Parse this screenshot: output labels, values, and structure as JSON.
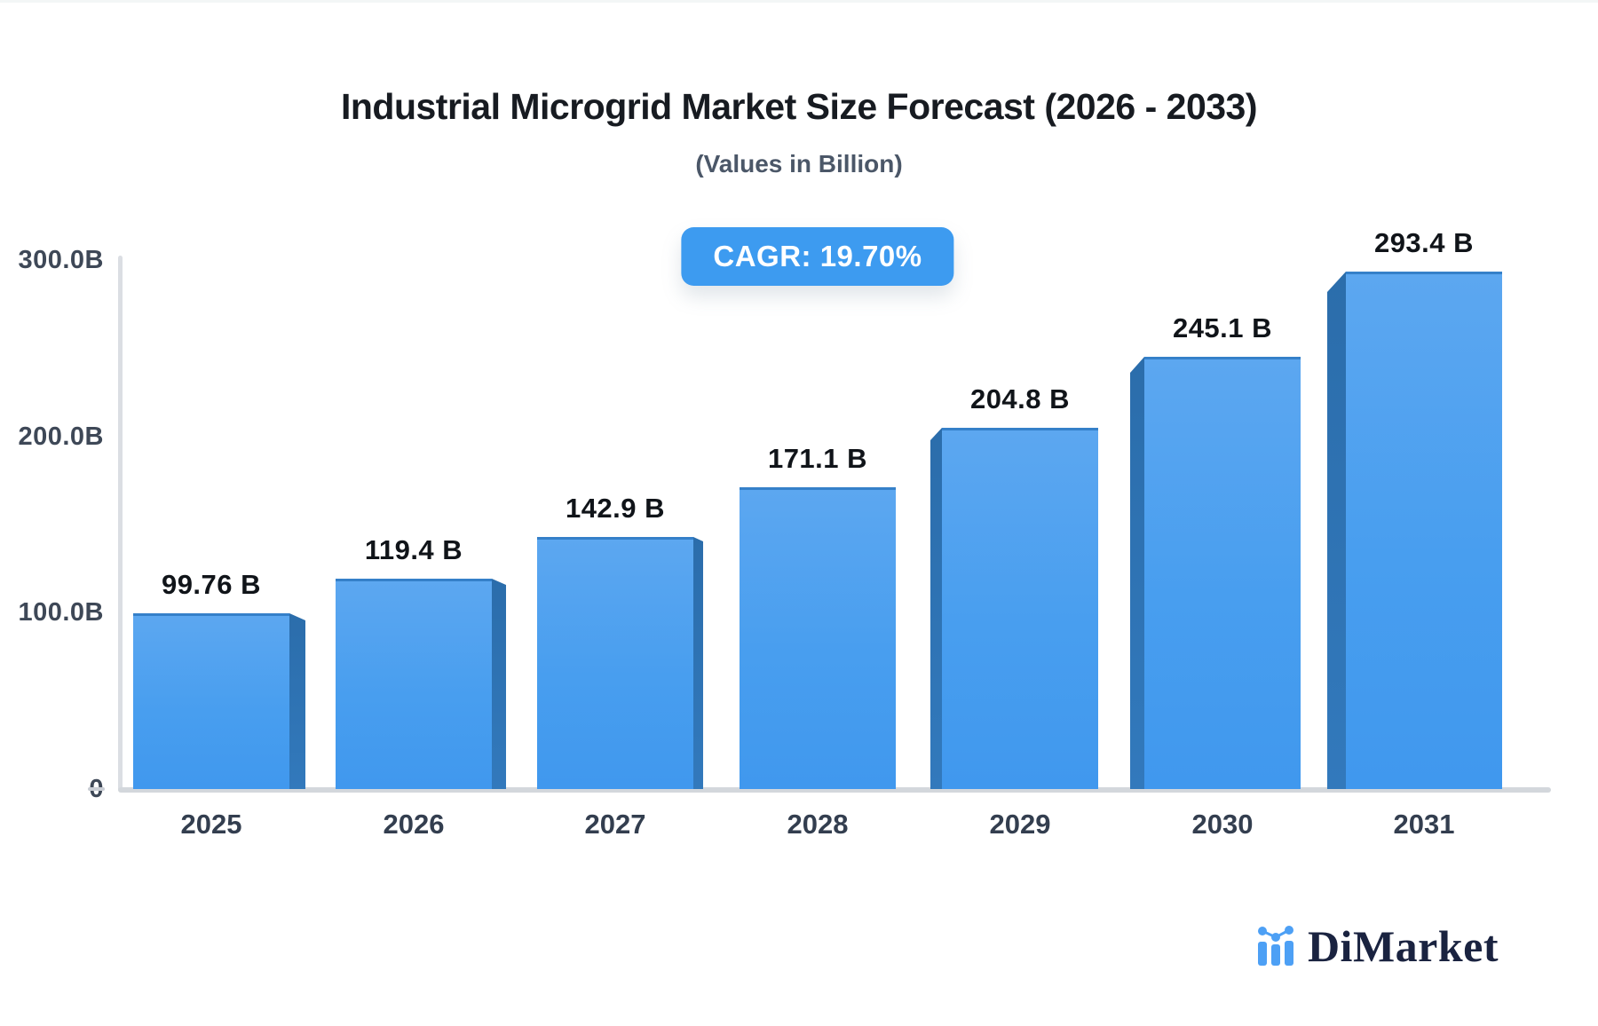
{
  "title": "Industrial Microgrid Market Size Forecast (2026 - 2033)",
  "subtitle": "(Values in Billion)",
  "badge": {
    "label": "CAGR: 19.70%"
  },
  "logo": {
    "brand": "DiMarket",
    "icon": "mini-bar-chart-logo-icon"
  },
  "colors": {
    "accent_blue": "#3d9bf0",
    "bar_front_top": "#5ca7f0",
    "bar_front_bottom": "#4098ee",
    "bar_side": "#2c70af",
    "axis_gray": "#d3d7dc",
    "title_color": "#171b21",
    "subtitle_color": "#4b5768",
    "logo_navy": "#1a2340"
  },
  "chart_data": {
    "type": "bar",
    "title": "Industrial Microgrid Market Size Forecast (2026 - 2033)",
    "subtitle": "(Values in Billion)",
    "unit": "Billion",
    "cagr": "19.70%",
    "categories": [
      "2025",
      "2026",
      "2027",
      "2028",
      "2029",
      "2030",
      "2031"
    ],
    "values": [
      99.76,
      119.4,
      142.9,
      171.1,
      204.8,
      245.1,
      293.4
    ],
    "value_labels": [
      "99.76 B",
      "119.4 B",
      "142.9 B",
      "171.1 B",
      "204.8 B",
      "245.1 B",
      "293.4 B"
    ],
    "xlabel": "",
    "ylabel": "",
    "ylim": [
      0,
      300
    ],
    "yticks": [
      {
        "value": 300,
        "label": "300.0B"
      },
      {
        "value": 200,
        "label": "200.0B"
      },
      {
        "value": 100,
        "label": "100.0B"
      },
      {
        "value": 0,
        "label": "0"
      }
    ],
    "grid": false,
    "legend_position": "none",
    "style_3d_sides": [
      {
        "side": "right",
        "w": 18,
        "drop": 8
      },
      {
        "side": "right",
        "w": 16,
        "drop": 7
      },
      {
        "side": "right",
        "w": 11,
        "drop": 5
      },
      {
        "side": "none",
        "w": 0,
        "drop": 0
      },
      {
        "side": "left",
        "w": 13,
        "drop": 14
      },
      {
        "side": "left",
        "w": 16,
        "drop": 18
      },
      {
        "side": "left",
        "w": 21,
        "drop": 23
      }
    ]
  }
}
